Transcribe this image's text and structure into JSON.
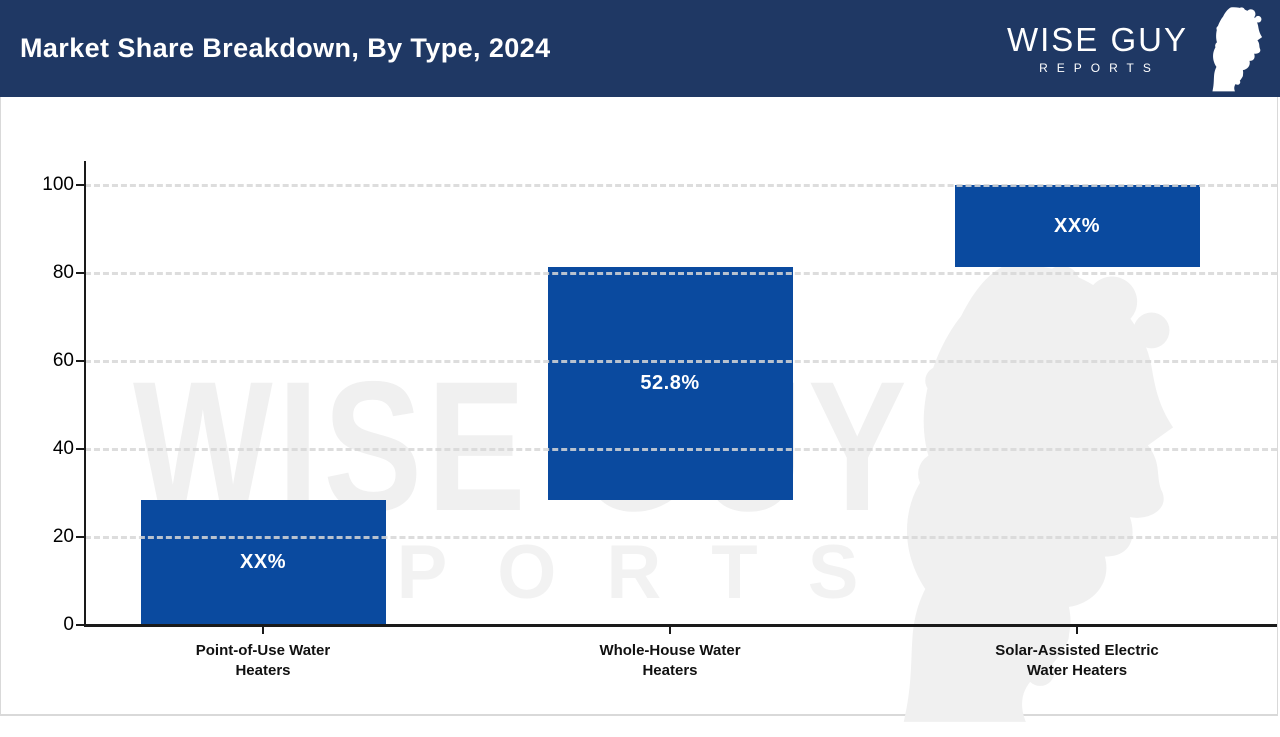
{
  "header": {
    "title": "Market Share Breakdown, By Type, 2024",
    "logo": {
      "wordmark": "WISE GUY",
      "sub": "REPORTS"
    }
  },
  "watermark": {
    "wordmark": "WISE GUY",
    "sub": "REPORTS"
  },
  "chart_data": {
    "type": "bar",
    "subtype": "floating-stacked-percentage",
    "title": "Market Share Breakdown, By Type, 2024",
    "categories": [
      "Point-of-Use Water Heaters",
      "Whole-House Water Heaters",
      "Solar-Assisted Electric Water Heaters"
    ],
    "segments": [
      {
        "category": "Point-of-Use Water Heaters",
        "start": 0,
        "end": 28.5,
        "value_label": "XX%"
      },
      {
        "category": "Whole-House Water Heaters",
        "start": 28.5,
        "end": 81.3,
        "value": 52.8,
        "value_label": "52.8%"
      },
      {
        "category": "Solar-Assisted Electric Water Heaters",
        "start": 81.3,
        "end": 100,
        "value_label": "XX%"
      }
    ],
    "xlabel": "",
    "ylabel": "",
    "ylim": [
      0,
      100
    ],
    "yticks": [
      0,
      20,
      40,
      60,
      80,
      100
    ],
    "grid": "horizontal dashed",
    "legend": "none",
    "bar_color": "#0a4a9f",
    "bar_label_color": "#ffffff"
  },
  "colors": {
    "header_bg": "#1f3864",
    "bar": "#0a4a9f",
    "axis": "#1a1a1a",
    "gridline": "#d9d9d9",
    "watermark": "#f0f0f0",
    "border": "#d9d9d9"
  }
}
